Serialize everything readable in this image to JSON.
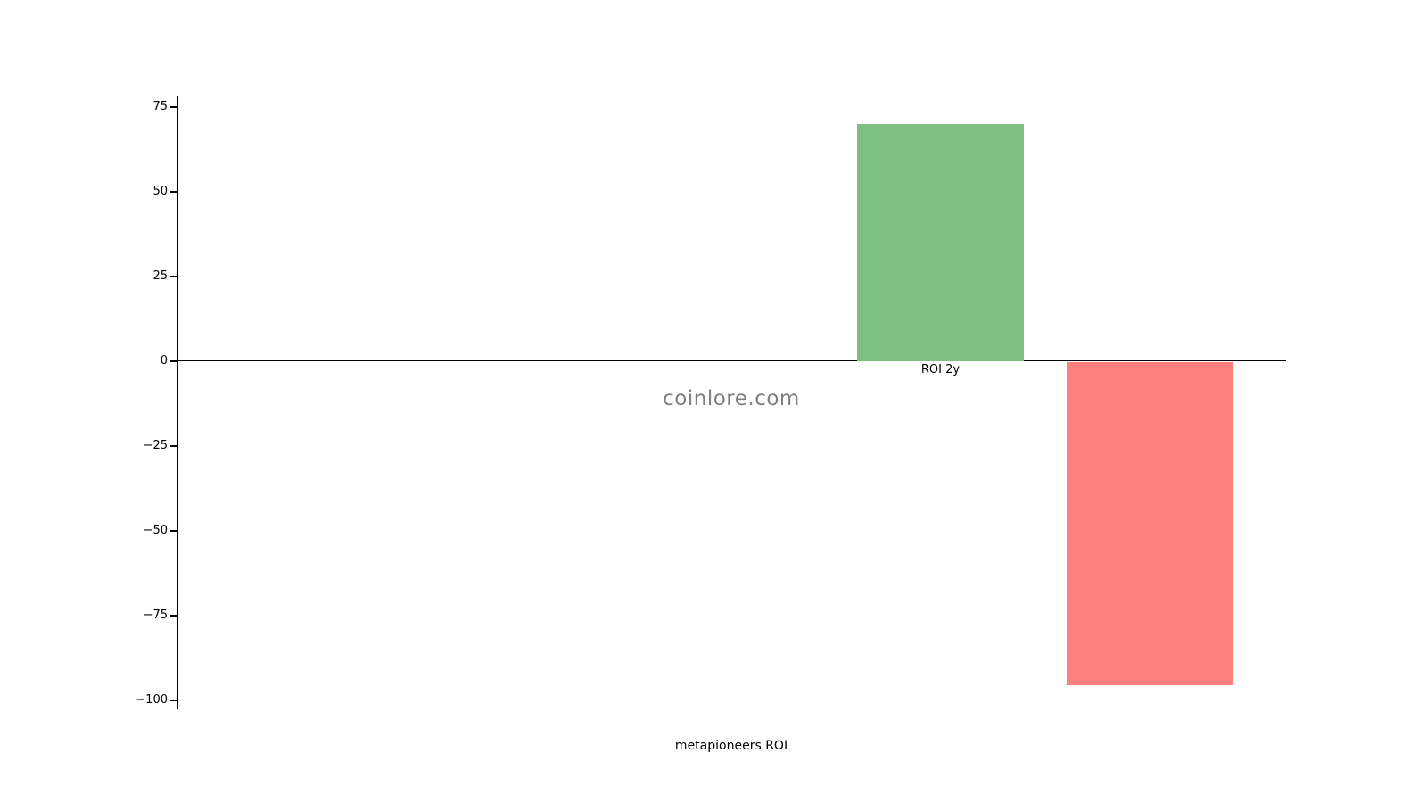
{
  "page": {
    "background_color": "#ffffff",
    "axis_color": "#000000",
    "text_color": "#000000",
    "watermark_color": "#808080"
  },
  "watermark": {
    "text": "coinlore.com"
  },
  "chart_data": {
    "type": "bar",
    "title": "",
    "xlabel": "metapioneers ROI",
    "ylabel": "",
    "categories": [
      "ROI 2y",
      ""
    ],
    "values": [
      70,
      -95.5
    ],
    "bar_colors": [
      "#7fbf7f",
      "#ff7f7f"
    ],
    "yticks": [
      75,
      50,
      25,
      0,
      -25,
      -50,
      -75,
      -100
    ],
    "ytick_labels": [
      "75",
      "50",
      "25",
      "0",
      "−25",
      "−50",
      "−75",
      "−100"
    ],
    "ylim": [
      -102,
      78
    ],
    "grid": false,
    "legend": false,
    "baseline": 0,
    "watermark": "coinlore.com"
  }
}
